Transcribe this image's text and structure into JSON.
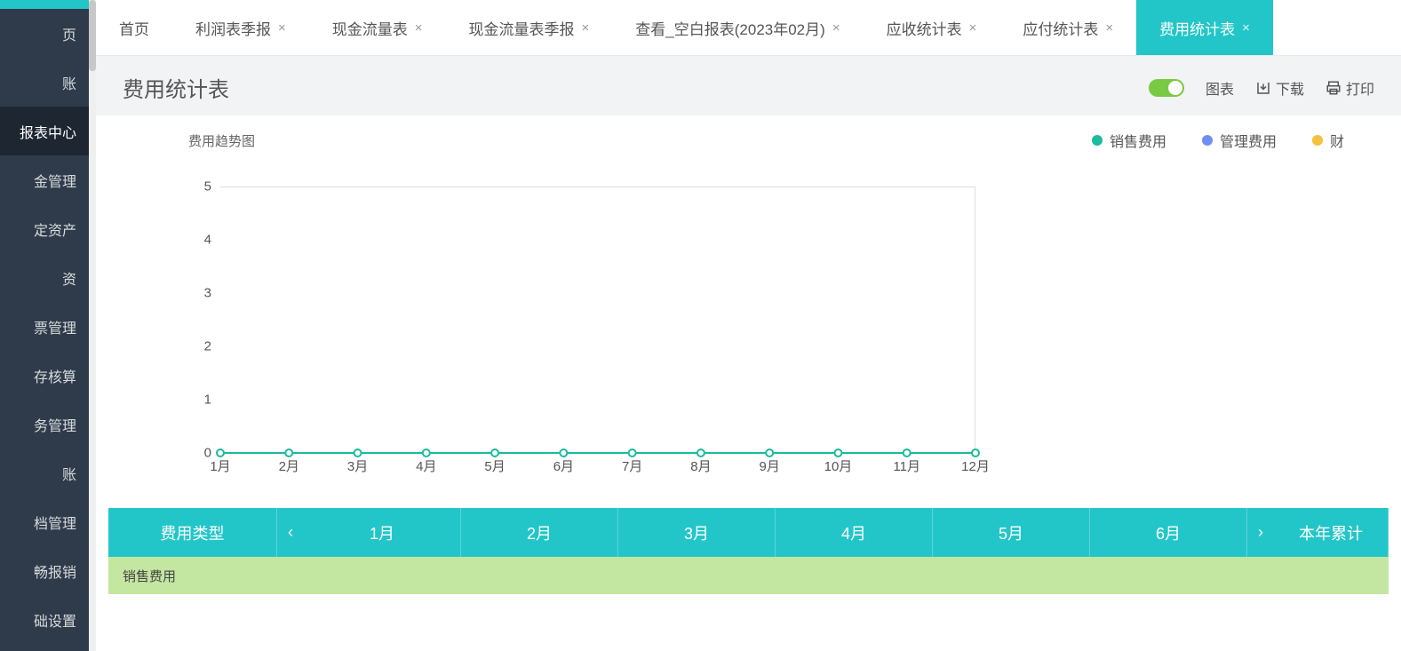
{
  "sidebar": {
    "items": [
      {
        "label": "页"
      },
      {
        "label": "账"
      },
      {
        "label": "报表中心",
        "active": true
      },
      {
        "label": "金管理"
      },
      {
        "label": "定资产"
      },
      {
        "label": "资"
      },
      {
        "label": "票管理"
      },
      {
        "label": "存核算"
      },
      {
        "label": "务管理"
      },
      {
        "label": "账"
      },
      {
        "label": "档管理"
      },
      {
        "label": "畅报销"
      },
      {
        "label": "础设置"
      }
    ]
  },
  "tabs": [
    {
      "label": "首页",
      "closable": false
    },
    {
      "label": "利润表季报",
      "closable": true
    },
    {
      "label": "现金流量表",
      "closable": true
    },
    {
      "label": "现金流量表季报",
      "closable": true
    },
    {
      "label": "查看_空白报表(2023年02月)",
      "closable": true
    },
    {
      "label": "应收统计表",
      "closable": true
    },
    {
      "label": "应付统计表",
      "closable": true
    },
    {
      "label": "费用统计表",
      "closable": true,
      "active": true
    }
  ],
  "header": {
    "title": "费用统计表",
    "toggle_label": "图表",
    "download_label": "下载",
    "print_label": "打印"
  },
  "chart": {
    "title": "费用趋势图",
    "type": "line",
    "legend": [
      {
        "label": "销售费用",
        "color": "#1abc9c"
      },
      {
        "label": "管理费用",
        "color": "#6f8ef2"
      },
      {
        "label": "财",
        "color": "#f3c13a"
      }
    ],
    "y_ticks": [
      0,
      1,
      2,
      3,
      4,
      5
    ],
    "ylim": [
      0,
      5
    ],
    "x_labels": [
      "1月",
      "2月",
      "3月",
      "4月",
      "5月",
      "6月",
      "7月",
      "8月",
      "9月",
      "10月",
      "11月",
      "12月"
    ],
    "series": [
      {
        "name": "销售费用",
        "color": "#1abc9c",
        "values": [
          0,
          0,
          0,
          0,
          0,
          0,
          0,
          0,
          0,
          0,
          0,
          0
        ]
      }
    ],
    "marker_radius": 4,
    "line_width": 2,
    "plot_bg": "#ffffff",
    "border_color": "#dddddd"
  },
  "table": {
    "header_first": "费用类型",
    "header_last": "本年累计",
    "months": [
      "1月",
      "2月",
      "3月",
      "4月",
      "5月",
      "6月"
    ],
    "rows": [
      {
        "label": "销售费用",
        "highlight": true,
        "cells": [
          "",
          "",
          "",
          "",
          "",
          ""
        ],
        "last": ""
      }
    ],
    "header_bg": "#23c6c8",
    "highlight_bg": "#c3e6a1"
  },
  "colors": {
    "accent": "#23c6c8",
    "sidebar_bg": "#2f3b4a",
    "sidebar_active_bg": "#1e2632",
    "toggle_on": "#7ac943"
  }
}
